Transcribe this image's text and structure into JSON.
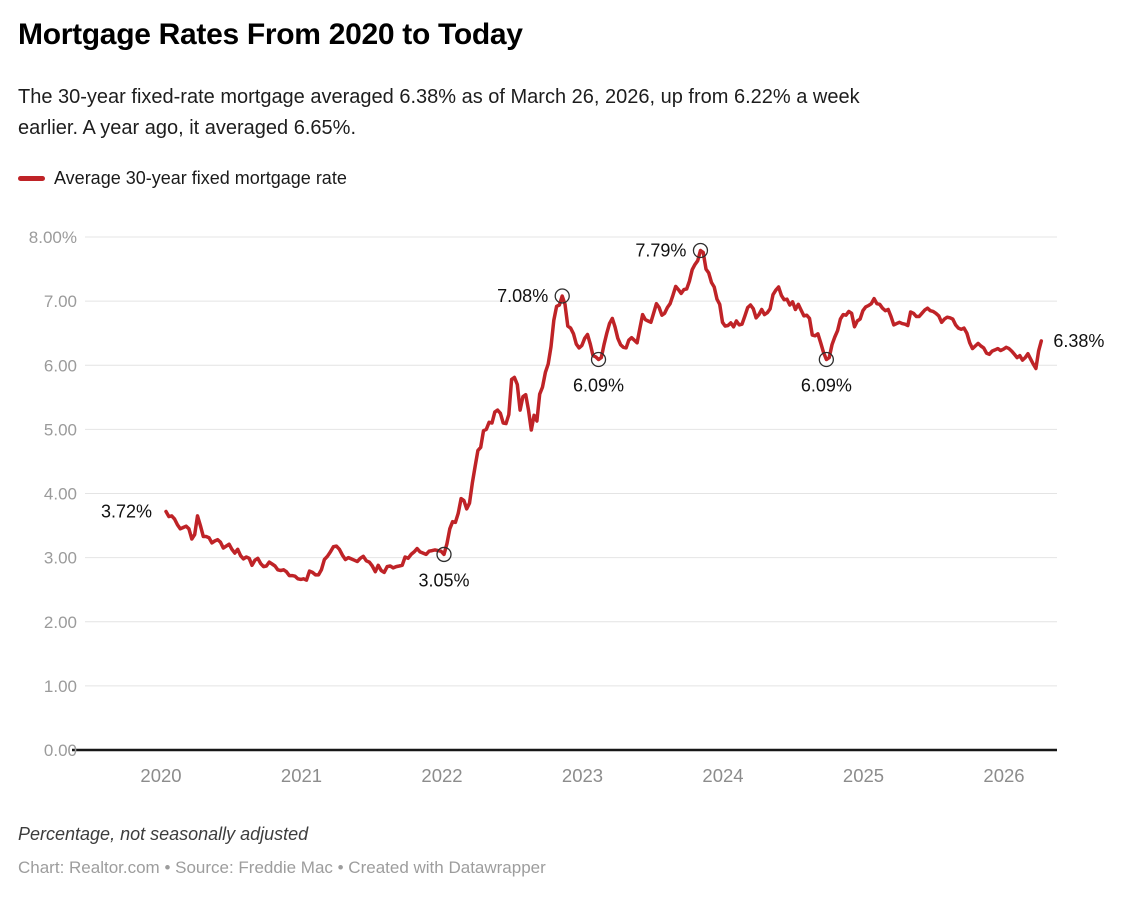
{
  "header": {
    "title": "Mortgage Rates From 2020 to Today",
    "subtitle": "The 30-year fixed-rate mortgage averaged 6.38% as of March 26, 2026, up from 6.22% a week\nearlier. A year ago, it averaged 6.65%."
  },
  "legend": {
    "label": "Average 30-year fixed mortgage rate"
  },
  "colors": {
    "line": "#bf2327",
    "grid": "#e4e4e4",
    "axis": "#171717",
    "axis_label": "#9b9b9b",
    "x_label": "#8c8c8c",
    "annotation": "#111111",
    "marker_stroke": "#2e2e2e"
  },
  "chart_data": {
    "type": "line",
    "title": "Mortgage Rates From 2020 to Today",
    "xlabel": "",
    "ylabel": "Average 30-year fixed mortgage rate (%)",
    "ylim": [
      0,
      8
    ],
    "grid": "horizontal",
    "legend_position": "top-left",
    "y_tick_labels": [
      "0.00",
      "1.00",
      "2.00",
      "3.00",
      "4.00",
      "5.00",
      "6.00",
      "7.00",
      "8.00%"
    ],
    "x_tick_labels": [
      "2020",
      "2021",
      "2022",
      "2023",
      "2024",
      "2025",
      "2026"
    ],
    "series": [
      {
        "name": "Average 30-year fixed mortgage rate",
        "points_by_year": [
          {
            "year": 2020,
            "values": [
              3.72,
              3.64,
              3.65,
              3.6,
              3.51,
              3.45,
              3.47,
              3.49,
              3.45,
              3.29,
              3.36,
              3.65,
              3.5,
              3.33,
              3.33,
              3.31,
              3.23,
              3.26,
              3.28,
              3.24,
              3.15,
              3.18,
              3.21,
              3.13,
              3.07,
              3.13,
              3.03,
              2.98,
              3.01,
              2.99,
              2.88,
              2.96,
              2.99,
              2.91,
              2.86,
              2.87,
              2.93,
              2.9,
              2.87,
              2.81,
              2.8,
              2.81,
              2.78,
              2.72,
              2.72,
              2.71,
              2.67,
              2.66,
              2.67
            ]
          },
          {
            "year": 2021,
            "values": [
              2.65,
              2.79,
              2.77,
              2.73,
              2.73,
              2.81,
              2.97,
              3.02,
              3.09,
              3.17,
              3.18,
              3.13,
              3.04,
              2.97,
              3.0,
              2.98,
              2.96,
              2.94,
              2.99,
              3.02,
              2.95,
              2.93,
              2.87,
              2.78,
              2.88,
              2.8,
              2.77,
              2.86,
              2.87,
              2.84,
              2.86,
              2.87,
              2.88,
              3.01,
              2.99,
              3.05,
              3.09,
              3.14,
              3.09,
              3.07,
              3.05,
              3.1,
              3.11,
              3.12,
              3.11,
              3.1,
              3.05
            ]
          },
          {
            "year": 2022,
            "values": [
              3.22,
              3.45,
              3.56,
              3.55,
              3.69,
              3.92,
              3.89,
              3.76,
              3.85,
              4.16,
              4.42,
              4.67,
              4.72,
              4.98,
              5.0,
              5.11,
              5.1,
              5.27,
              5.3,
              5.25,
              5.1,
              5.09,
              5.23,
              5.78,
              5.81,
              5.7,
              5.3,
              5.51,
              5.54,
              5.3,
              4.99,
              5.22,
              5.13,
              5.55,
              5.66,
              5.89,
              6.02,
              6.29,
              6.7,
              6.92,
              6.94,
              7.08,
              6.95,
              6.61,
              6.58,
              6.49,
              6.33,
              6.27,
              6.31,
              6.42
            ]
          },
          {
            "year": 2023,
            "values": [
              6.48,
              6.33,
              6.15,
              6.13,
              6.09,
              6.12,
              6.32,
              6.5,
              6.65,
              6.73,
              6.6,
              6.42,
              6.32,
              6.28,
              6.27,
              6.39,
              6.43,
              6.39,
              6.35,
              6.57,
              6.79,
              6.71,
              6.69,
              6.67,
              6.81,
              6.96,
              6.9,
              6.78,
              6.81,
              6.9,
              6.96,
              7.09,
              7.23,
              7.18,
              7.12,
              7.18,
              7.19,
              7.31,
              7.49,
              7.57,
              7.63,
              7.79,
              7.76,
              7.5,
              7.44,
              7.29,
              7.22,
              7.03,
              6.95,
              6.67,
              6.61
            ]
          },
          {
            "year": 2024,
            "values": [
              6.62,
              6.66,
              6.6,
              6.69,
              6.63,
              6.64,
              6.77,
              6.9,
              6.94,
              6.88,
              6.74,
              6.79,
              6.87,
              6.79,
              6.82,
              6.88,
              7.1,
              7.17,
              7.22,
              7.09,
              7.02,
              7.03,
              6.94,
              6.99,
              6.87,
              6.95,
              6.86,
              6.77,
              6.78,
              6.73,
              6.47,
              6.46,
              6.49,
              6.35,
              6.2,
              6.09,
              6.12,
              6.32,
              6.44,
              6.54,
              6.72,
              6.79,
              6.78,
              6.84,
              6.81,
              6.6,
              6.69,
              6.72,
              6.85,
              6.91
            ]
          },
          {
            "year": 2025,
            "values": [
              6.93,
              6.96,
              7.04,
              6.96,
              6.95,
              6.89,
              6.85,
              6.87,
              6.76,
              6.63,
              6.65,
              6.67,
              6.65,
              6.64,
              6.62,
              6.83,
              6.81,
              6.76,
              6.76,
              6.81,
              6.86,
              6.89,
              6.85,
              6.84,
              6.81,
              6.77,
              6.67,
              6.72,
              6.75,
              6.74,
              6.72,
              6.63,
              6.58,
              6.56,
              6.58,
              6.5,
              6.35,
              6.26,
              6.3,
              6.34,
              6.3,
              6.27,
              6.19,
              6.17,
              6.22,
              6.24,
              6.26,
              6.23,
              6.25,
              6.28
            ]
          },
          {
            "year": 2026,
            "span": 0.23,
            "values": [
              6.26,
              6.22,
              6.17,
              6.12,
              6.15,
              6.08,
              6.12,
              6.18,
              6.1,
              6.02,
              5.95,
              6.22,
              6.38
            ]
          }
        ]
      }
    ],
    "annotations": [
      {
        "label": "3.72%",
        "year": 2020,
        "index": 0,
        "circle": false,
        "placement": "left"
      },
      {
        "label": "3.05%",
        "year": 2021,
        "index": 46,
        "circle": true,
        "placement": "below"
      },
      {
        "label": "7.08%",
        "year": 2022,
        "index": 41,
        "circle": true,
        "placement": "left"
      },
      {
        "label": "6.09%",
        "year": 2023,
        "index": 4,
        "circle": true,
        "placement": "below"
      },
      {
        "label": "7.79%",
        "year": 2023,
        "index": 41,
        "circle": true,
        "placement": "left"
      },
      {
        "label": "6.09%",
        "year": 2024,
        "index": 35,
        "circle": true,
        "placement": "below"
      },
      {
        "label": "6.38%",
        "year": 2026,
        "index": 12,
        "circle": false,
        "placement": "right"
      }
    ]
  },
  "footer": {
    "note": "Percentage, not seasonally adjusted",
    "credit": "Chart: Realtor.com • Source: Freddie Mac • Created with Datawrapper"
  }
}
